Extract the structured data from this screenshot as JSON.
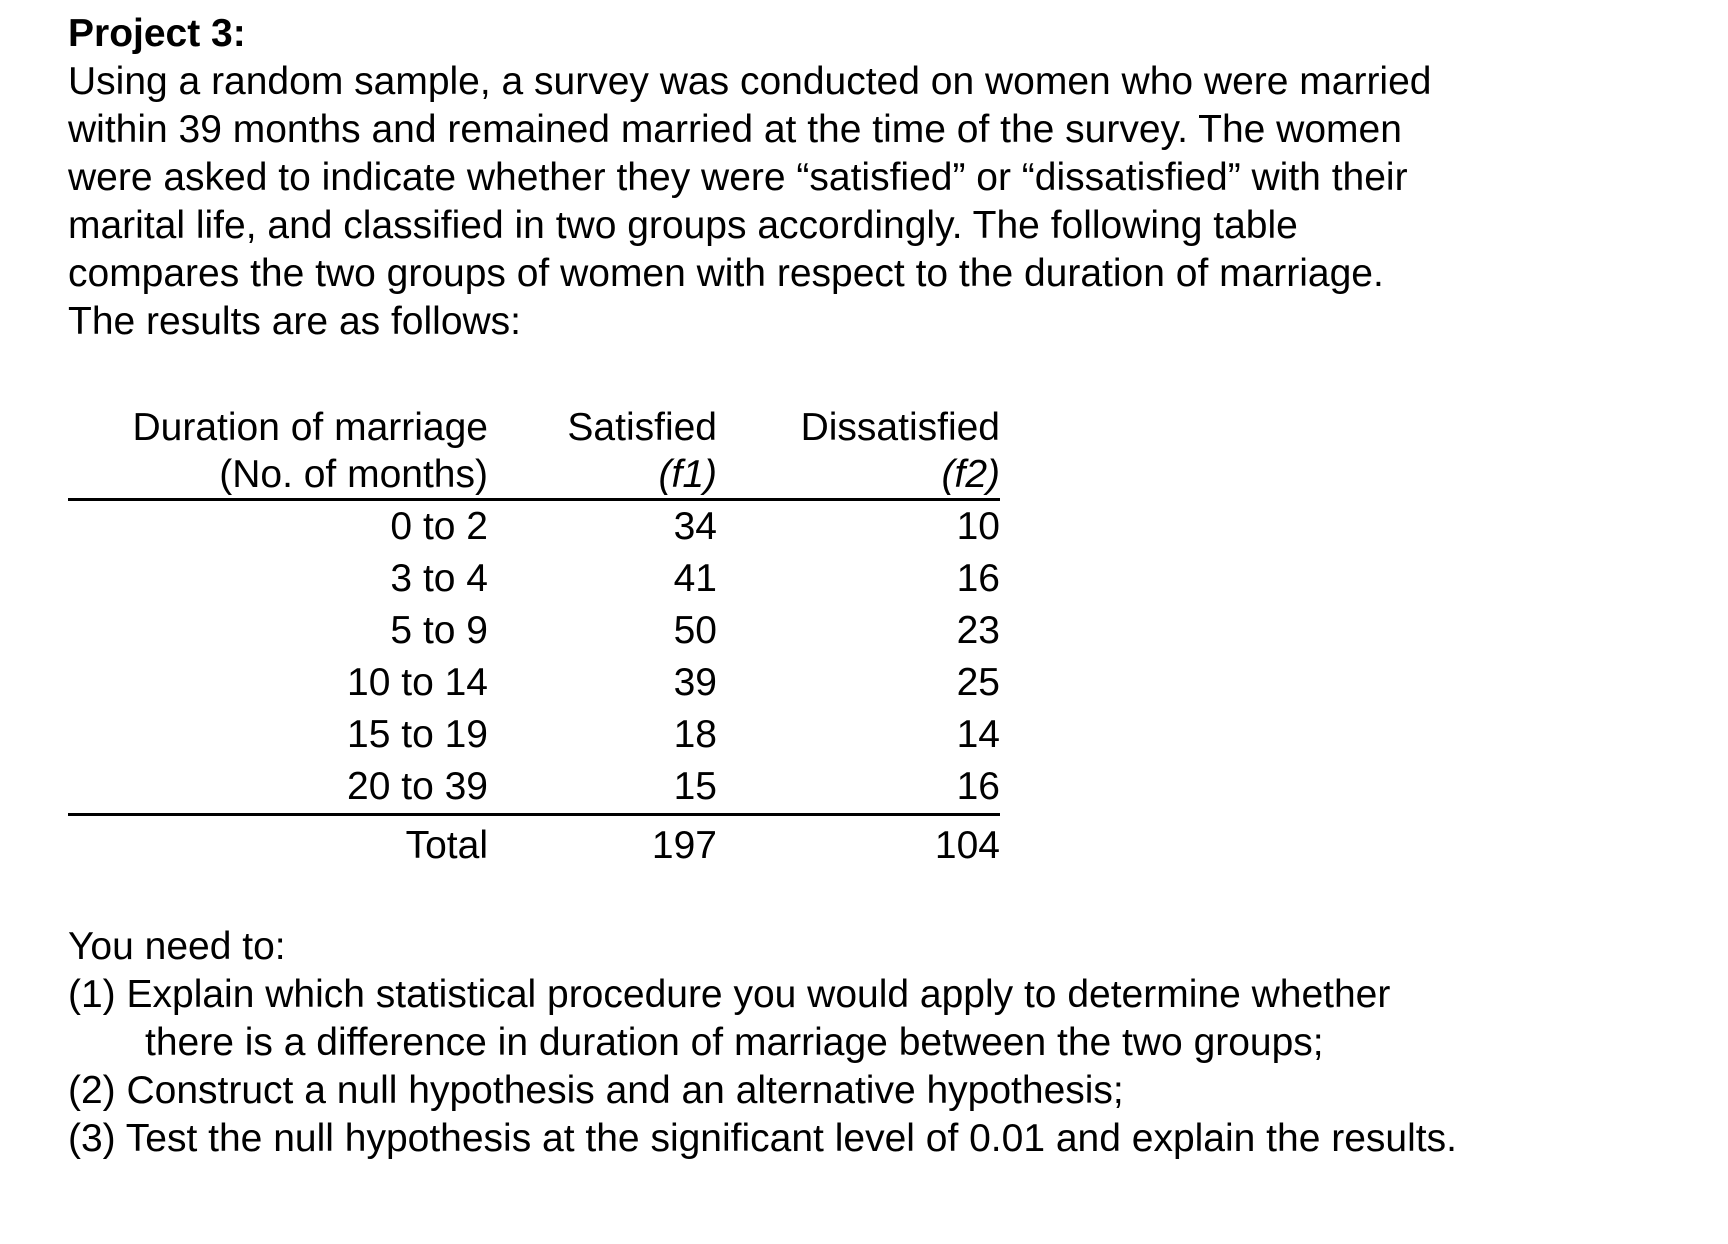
{
  "document": {
    "title": "Project 3:",
    "intro_lines": [
      "Using a random sample, a survey was conducted on women who were married",
      "within 39 months and remained married at the time of the survey. The women",
      "were asked to indicate whether they were “satisfied” or “dissatisfied” with their",
      "marital life, and classified in two groups accordingly. The following table",
      "compares the two groups of women with respect to the duration of marriage.",
      "The results are as follows:"
    ],
    "table": {
      "headers": {
        "duration": {
          "line1": "Duration of marriage",
          "line2": "(No. of months)"
        },
        "satisfied": {
          "line1": "Satisfied",
          "line2": "(f1)"
        },
        "dissatisfied": {
          "line1": "Dissatisfied",
          "line2": "(f2)"
        }
      },
      "rows": [
        {
          "duration": "0 to 2",
          "f1": "34",
          "f2": "10"
        },
        {
          "duration": "3 to 4",
          "f1": "41",
          "f2": "16"
        },
        {
          "duration": "5 to 9",
          "f1": "50",
          "f2": "23"
        },
        {
          "duration": "10 to 14",
          "f1": "39",
          "f2": "25"
        },
        {
          "duration": "15 to 19",
          "f1": "18",
          "f2": "14"
        },
        {
          "duration": "20 to 39",
          "f1": "15",
          "f2": "16"
        }
      ],
      "total": {
        "label": "Total",
        "f1": "197",
        "f2": "104"
      }
    },
    "tasks_intro": "You need to:",
    "tasks": [
      {
        "line1": "(1) Explain which statistical procedure you would apply to determine whether",
        "line2": "there is a difference in duration of marriage between the two groups;"
      },
      {
        "line1": "(2) Construct a null hypothesis and an alternative hypothesis;"
      },
      {
        "line1": "(3) Test the null hypothesis at the significant level of 0.01 and explain the results."
      }
    ]
  }
}
